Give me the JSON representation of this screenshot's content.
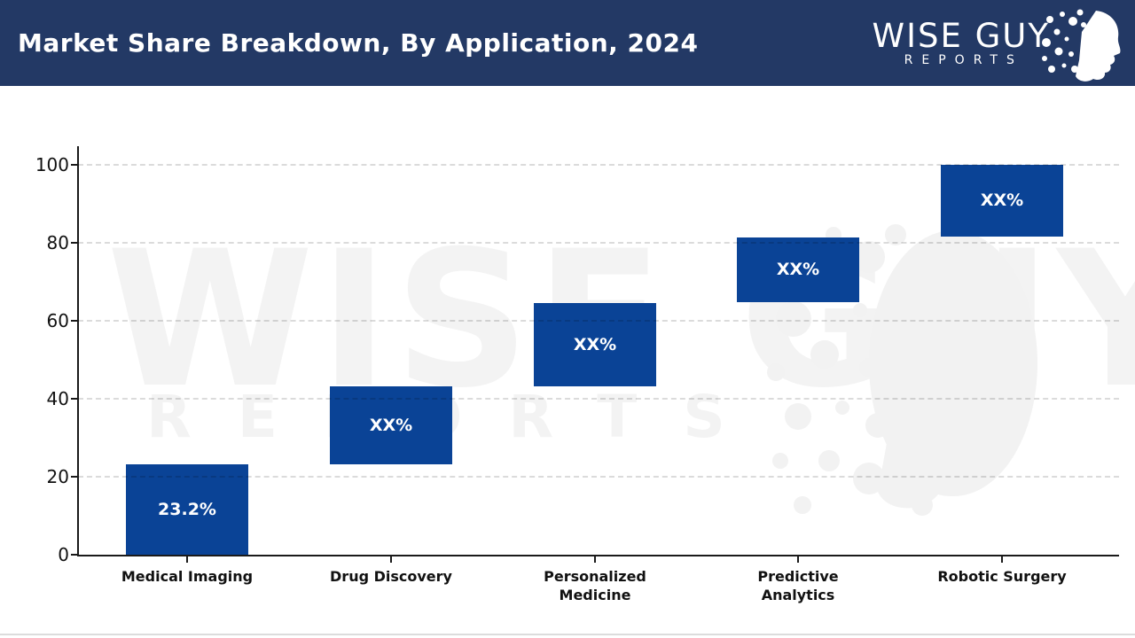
{
  "header": {
    "title": "Market Share Breakdown, By Application, 2024",
    "background_color": "#233965",
    "logo": {
      "main": "WISE GUY",
      "sub": "REPORTS"
    }
  },
  "watermark": {
    "main": "WISE GUY",
    "sub": "REPORTS"
  },
  "chart_data": {
    "type": "bar",
    "subtype": "waterfall",
    "title": "Market Share Breakdown, By Application, 2024",
    "categories": [
      "Medical Imaging",
      "Drug Discovery",
      "Personalized Medicine",
      "Predictive Analytics",
      "Robotic Surgery"
    ],
    "category_lines": [
      [
        "Medical Imaging"
      ],
      [
        "Drug Discovery"
      ],
      [
        "Personalized",
        "Medicine"
      ],
      [
        "Predictive",
        "Analytics"
      ],
      [
        "Robotic Surgery"
      ]
    ],
    "segments": [
      {
        "start": 0,
        "end": 23.2,
        "label": "23.2%"
      },
      {
        "start": 23.2,
        "end": 43.2,
        "label": "XX%"
      },
      {
        "start": 43.2,
        "end": 64.5,
        "label": "XX%"
      },
      {
        "start": 64.8,
        "end": 81.4,
        "label": "XX%"
      },
      {
        "start": 81.6,
        "end": 100,
        "label": "XX%"
      }
    ],
    "yticks": [
      0,
      20,
      40,
      60,
      80,
      100
    ],
    "ylim": [
      0,
      105
    ],
    "xlabel": "",
    "ylabel": "",
    "grid": "dashed-horizontal",
    "legend": "none",
    "bar_color": "#0A4396",
    "axis_color": "#1a1a1a",
    "grid_color": "#d9d9d9"
  }
}
